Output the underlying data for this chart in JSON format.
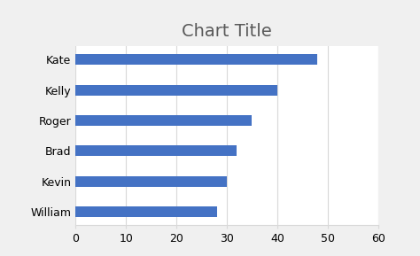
{
  "title": "Chart Title",
  "categories": [
    "Kate",
    "Kelly",
    "Roger",
    "Brad",
    "Kevin",
    "William"
  ],
  "values": [
    48,
    40,
    35,
    32,
    30,
    28
  ],
  "bar_color": "#4472C4",
  "xlim": [
    0,
    60
  ],
  "xticks": [
    0,
    10,
    20,
    30,
    40,
    50,
    60
  ],
  "title_fontsize": 14,
  "label_fontsize": 9,
  "tick_fontsize": 9,
  "background_color": "#ffffff",
  "outer_bg_color": "#f0f0f0",
  "grid_color": "#d9d9d9",
  "bar_height": 0.35,
  "title_color": "#595959"
}
